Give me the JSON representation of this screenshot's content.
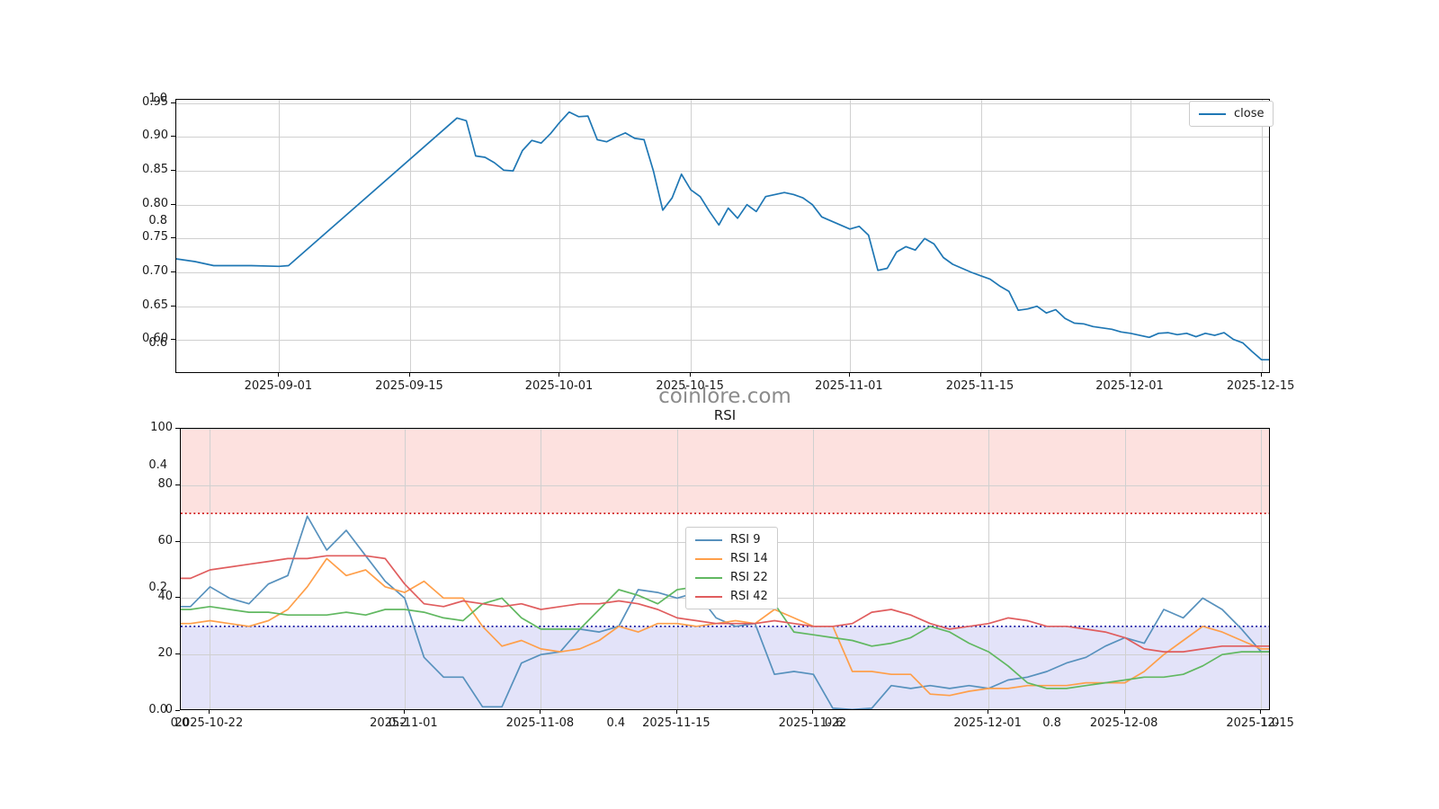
{
  "watermark": {
    "text": "coinlore.com",
    "color": "#8b8b8b"
  },
  "chart_data": [
    {
      "name": "price-chart",
      "type": "line",
      "title": "",
      "grid": true,
      "legend_position": "upper right",
      "x_domain": [
        "2025-08-21",
        "2025-12-16"
      ],
      "ylim": [
        0.55,
        0.955
      ],
      "yticks": [
        0.95,
        0.9,
        0.85,
        0.8,
        0.75,
        0.7,
        0.65,
        0.6
      ],
      "ytick_labels": [
        "0.95",
        "0.90",
        "0.85",
        "0.80",
        "0.75",
        "0.70",
        "0.65",
        "0.60"
      ],
      "xticks": [
        "2025-09-01",
        "2025-09-15",
        "2025-10-01",
        "2025-10-15",
        "2025-11-01",
        "2025-11-15",
        "2025-12-01",
        "2025-12-15"
      ],
      "series": [
        {
          "name": "close",
          "color": "#1f77b4",
          "points": [
            [
              "2025-08-21",
              0.72
            ],
            [
              "2025-08-23",
              0.716
            ],
            [
              "2025-08-25",
              0.71
            ],
            [
              "2025-08-29",
              0.71
            ],
            [
              "2025-09-01",
              0.709
            ],
            [
              "2025-09-02",
              0.71
            ],
            [
              "2025-09-20",
              0.928
            ],
            [
              "2025-09-21",
              0.924
            ],
            [
              "2025-09-22",
              0.872
            ],
            [
              "2025-09-23",
              0.87
            ],
            [
              "2025-09-24",
              0.862
            ],
            [
              "2025-09-25",
              0.851
            ],
            [
              "2025-09-26",
              0.85
            ],
            [
              "2025-09-27",
              0.88
            ],
            [
              "2025-09-28",
              0.895
            ],
            [
              "2025-09-29",
              0.891
            ],
            [
              "2025-09-30",
              0.905
            ],
            [
              "2025-10-01",
              0.922
            ],
            [
              "2025-10-02",
              0.937
            ],
            [
              "2025-10-03",
              0.93
            ],
            [
              "2025-10-04",
              0.931
            ],
            [
              "2025-10-05",
              0.896
            ],
            [
              "2025-10-06",
              0.893
            ],
            [
              "2025-10-07",
              0.9
            ],
            [
              "2025-10-08",
              0.906
            ],
            [
              "2025-10-09",
              0.898
            ],
            [
              "2025-10-10",
              0.896
            ],
            [
              "2025-10-11",
              0.85
            ],
            [
              "2025-10-12",
              0.792
            ],
            [
              "2025-10-13",
              0.81
            ],
            [
              "2025-10-14",
              0.845
            ],
            [
              "2025-10-15",
              0.822
            ],
            [
              "2025-10-16",
              0.812
            ],
            [
              "2025-10-17",
              0.79
            ],
            [
              "2025-10-18",
              0.77
            ],
            [
              "2025-10-19",
              0.795
            ],
            [
              "2025-10-20",
              0.78
            ],
            [
              "2025-10-21",
              0.8
            ],
            [
              "2025-10-22",
              0.79
            ],
            [
              "2025-10-23",
              0.812
            ],
            [
              "2025-10-24",
              0.815
            ],
            [
              "2025-10-25",
              0.818
            ],
            [
              "2025-10-26",
              0.815
            ],
            [
              "2025-10-27",
              0.81
            ],
            [
              "2025-10-28",
              0.8
            ],
            [
              "2025-10-29",
              0.782
            ],
            [
              "2025-10-30",
              0.776
            ],
            [
              "2025-10-31",
              0.77
            ],
            [
              "2025-11-01",
              0.764
            ],
            [
              "2025-11-02",
              0.768
            ],
            [
              "2025-11-03",
              0.755
            ],
            [
              "2025-11-04",
              0.703
            ],
            [
              "2025-11-05",
              0.706
            ],
            [
              "2025-11-06",
              0.73
            ],
            [
              "2025-11-07",
              0.738
            ],
            [
              "2025-11-08",
              0.733
            ],
            [
              "2025-11-09",
              0.75
            ],
            [
              "2025-11-10",
              0.742
            ],
            [
              "2025-11-11",
              0.722
            ],
            [
              "2025-11-12",
              0.712
            ],
            [
              "2025-11-13",
              0.706
            ],
            [
              "2025-11-14",
              0.7
            ],
            [
              "2025-11-15",
              0.695
            ],
            [
              "2025-11-16",
              0.69
            ],
            [
              "2025-11-17",
              0.68
            ],
            [
              "2025-11-18",
              0.672
            ],
            [
              "2025-11-19",
              0.644
            ],
            [
              "2025-11-20",
              0.646
            ],
            [
              "2025-11-21",
              0.65
            ],
            [
              "2025-11-22",
              0.64
            ],
            [
              "2025-11-23",
              0.645
            ],
            [
              "2025-11-24",
              0.632
            ],
            [
              "2025-11-25",
              0.625
            ],
            [
              "2025-11-26",
              0.624
            ],
            [
              "2025-11-27",
              0.62
            ],
            [
              "2025-11-28",
              0.618
            ],
            [
              "2025-11-29",
              0.616
            ],
            [
              "2025-11-30",
              0.612
            ],
            [
              "2025-12-01",
              0.61
            ],
            [
              "2025-12-02",
              0.607
            ],
            [
              "2025-12-03",
              0.604
            ],
            [
              "2025-12-04",
              0.61
            ],
            [
              "2025-12-05",
              0.611
            ],
            [
              "2025-12-06",
              0.608
            ],
            [
              "2025-12-07",
              0.61
            ],
            [
              "2025-12-08",
              0.605
            ],
            [
              "2025-12-09",
              0.61
            ],
            [
              "2025-12-10",
              0.607
            ],
            [
              "2025-12-11",
              0.611
            ],
            [
              "2025-12-12",
              0.601
            ],
            [
              "2025-12-13",
              0.596
            ],
            [
              "2025-12-14",
              0.583
            ],
            [
              "2025-12-15",
              0.571
            ]
          ]
        }
      ]
    },
    {
      "name": "rsi-chart",
      "type": "line",
      "title": "RSI",
      "grid": true,
      "legend_position": "center",
      "x_domain": [
        "2025-10-20T12:00:00",
        "2025-12-15T12:00:00"
      ],
      "ylim": [
        0,
        100
      ],
      "yticks": [
        100,
        80,
        60,
        40,
        20,
        0
      ],
      "ytick_labels": [
        "100",
        "80",
        "60",
        "40",
        "20",
        "0"
      ],
      "xticks": [
        "2025-10-22",
        "2025-11-01",
        "2025-11-08",
        "2025-11-15",
        "2025-11-22",
        "2025-12-01",
        "2025-12-08",
        "2025-12-15"
      ],
      "bands": [
        {
          "from": 70,
          "to": 100,
          "color": "rgba(244,67,54,0.16)",
          "meaning": "overbought"
        },
        {
          "from": 0,
          "to": 30,
          "color": "rgba(80,80,220,0.16)",
          "meaning": "oversold"
        }
      ],
      "hlines": [
        {
          "y": 70,
          "color": "#cc0000",
          "style": "dotted"
        },
        {
          "y": 30,
          "color": "#000099",
          "style": "dotted"
        }
      ],
      "dates": [
        "2025-10-21",
        "2025-10-22",
        "2025-10-23",
        "2025-10-24",
        "2025-10-25",
        "2025-10-26",
        "2025-10-27",
        "2025-10-28",
        "2025-10-29",
        "2025-10-30",
        "2025-10-31",
        "2025-11-01",
        "2025-11-02",
        "2025-11-03",
        "2025-11-04",
        "2025-11-05",
        "2025-11-06",
        "2025-11-07",
        "2025-11-08",
        "2025-11-09",
        "2025-11-10",
        "2025-11-11",
        "2025-11-12",
        "2025-11-13",
        "2025-11-14",
        "2025-11-15",
        "2025-11-16",
        "2025-11-17",
        "2025-11-18",
        "2025-11-19",
        "2025-11-20",
        "2025-11-21",
        "2025-11-22",
        "2025-11-23",
        "2025-11-24",
        "2025-11-25",
        "2025-11-26",
        "2025-11-27",
        "2025-11-28",
        "2025-11-29",
        "2025-11-30",
        "2025-12-01",
        "2025-12-02",
        "2025-12-03",
        "2025-12-04",
        "2025-12-05",
        "2025-12-06",
        "2025-12-07",
        "2025-12-08",
        "2025-12-09",
        "2025-12-10",
        "2025-12-11",
        "2025-12-12",
        "2025-12-13",
        "2025-12-14",
        "2025-12-15"
      ],
      "series": [
        {
          "name": "RSI 9",
          "color": "#5791bd",
          "values": [
            37,
            44,
            40,
            38,
            45,
            48,
            69,
            57,
            64,
            55,
            46,
            40,
            19,
            12,
            12,
            1.5,
            1.5,
            17,
            20,
            21,
            29,
            28,
            30,
            43,
            42,
            40,
            42,
            33,
            30,
            31,
            13,
            14,
            13,
            1,
            0.5,
            1,
            9,
            8,
            9,
            8,
            9,
            8,
            11,
            12,
            14,
            17,
            19,
            23,
            26,
            24,
            36,
            33,
            40,
            36,
            29,
            21
          ]
        },
        {
          "name": "RSI 14",
          "color": "#ff9f4a",
          "values": [
            31,
            32,
            31,
            30,
            32,
            36,
            44,
            54,
            48,
            50,
            44,
            42,
            46,
            40,
            40,
            30,
            23,
            25,
            22,
            21,
            22,
            25,
            30,
            28,
            31,
            31,
            30,
            31,
            32,
            31,
            36,
            33,
            30,
            30,
            14,
            14,
            13,
            13,
            6,
            5.5,
            7,
            8,
            8,
            9,
            9,
            9,
            10,
            10,
            10,
            14,
            20,
            25,
            30,
            28,
            25,
            22
          ]
        },
        {
          "name": "RSI 22",
          "color": "#61b861",
          "values": [
            36,
            37,
            36,
            35,
            35,
            34,
            34,
            34,
            35,
            34,
            36,
            36,
            35,
            33,
            32,
            38,
            40,
            33,
            29,
            29,
            29,
            36,
            43,
            41,
            38,
            43,
            44,
            42,
            40,
            40,
            38,
            28,
            27,
            26,
            25,
            23,
            24,
            26,
            30,
            28,
            24,
            21,
            16,
            10,
            8,
            8,
            9,
            10,
            11,
            12,
            12,
            13,
            16,
            20,
            21,
            21
          ]
        },
        {
          "name": "RSI 42",
          "color": "#e05d5e",
          "values": [
            47,
            50,
            51,
            52,
            53,
            54,
            54,
            55,
            55,
            55,
            54,
            45,
            38,
            37,
            39,
            38,
            37,
            38,
            36,
            37,
            38,
            38,
            39,
            38,
            36,
            33,
            32,
            31,
            31,
            31,
            32,
            31,
            30,
            30,
            31,
            35,
            36,
            34,
            31,
            29,
            30,
            31,
            33,
            32,
            30,
            30,
            29,
            28,
            26,
            22,
            21,
            21,
            22,
            23,
            23,
            23
          ]
        }
      ]
    }
  ],
  "overlay_axis": {
    "note": "stray 0-1 figure axis tick labels overlapping the real axes",
    "y_ticks": [
      "1.0",
      "0.8",
      "0.6",
      "0.4",
      "0.2",
      "0.0"
    ],
    "x_ticks": [
      "0.0",
      "0.2",
      "0.4",
      "0.6",
      "0.8",
      "1.0"
    ]
  }
}
